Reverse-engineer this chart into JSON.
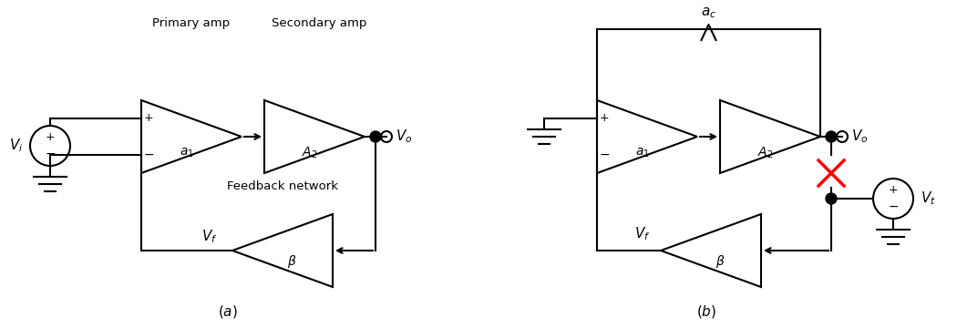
{
  "bg_color": "#ffffff",
  "line_color": "#000000",
  "red_color": "#ff0000",
  "fig_width": 10.5,
  "fig_height": 3.6,
  "lw": 1.5,
  "labels": {
    "primary_amp": "Primary amp",
    "secondary_amp": "Secondary amp",
    "feedback_network": "Feedback network",
    "a1_a": "$a_1$",
    "A2_a": "$A_2$",
    "A2_b": "$A_2$",
    "a1_b": "$a_1$",
    "beta_a": "$\\beta$",
    "beta_b": "$\\beta$",
    "Vi": "$V_i$",
    "Vo_a": "$V_o$",
    "Vo_b": "$V_o$",
    "Vf_a": "$V_f$",
    "Vf_b": "$V_f$",
    "Vt": "$V_t$",
    "ac": "$a_c$",
    "plus": "+",
    "minus": "−",
    "label_a": "$(a)$",
    "label_b": "$(b)$"
  }
}
